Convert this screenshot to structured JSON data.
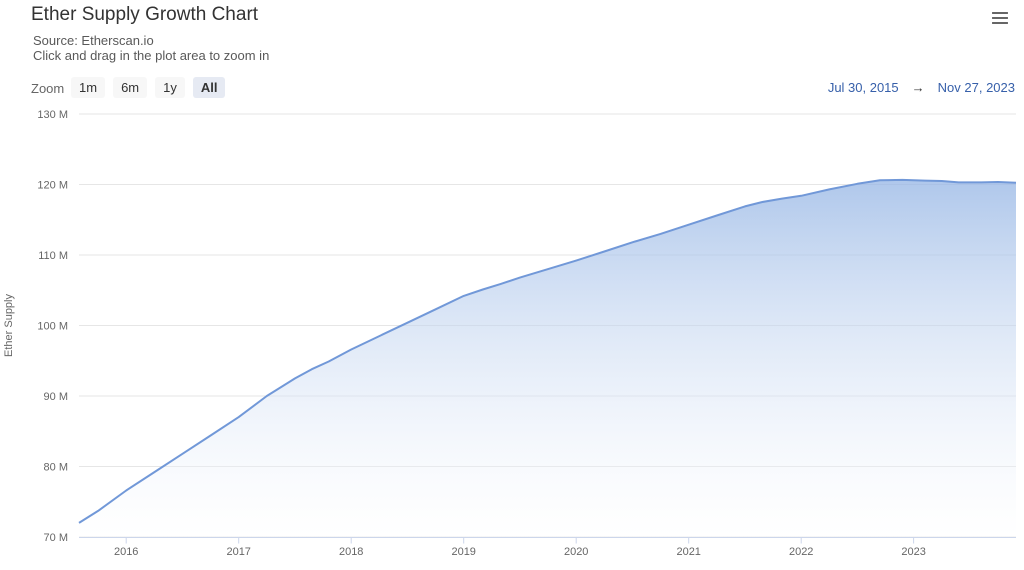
{
  "header": {
    "title": "Ether Supply Growth Chart",
    "subtitle_source": "Source: Etherscan.io",
    "subtitle_hint": "Click and drag in the plot area to zoom in"
  },
  "context_menu_icon": "hamburger-menu-icon",
  "toolbar": {
    "zoom_label": "Zoom",
    "buttons": [
      {
        "label": "1m",
        "selected": false
      },
      {
        "label": "6m",
        "selected": false
      },
      {
        "label": "1y",
        "selected": false
      },
      {
        "label": "All",
        "selected": true
      }
    ],
    "range": {
      "from": "Jul 30, 2015",
      "arrow": "→",
      "to": "Nov 27, 2023"
    }
  },
  "chart_data": {
    "type": "area",
    "title": "Ether Supply Growth Chart",
    "xlabel": "",
    "ylabel": "Ether Supply",
    "y_unit": "million ETH",
    "x_unit": "decimal year",
    "xlim": [
      2015.58,
      2023.91
    ],
    "ylim": [
      70,
      130
    ],
    "grid": "horizontal",
    "legend": "none",
    "y_ticks": [
      70,
      80,
      90,
      100,
      110,
      120,
      130
    ],
    "y_tick_labels": [
      "70 M",
      "80 M",
      "90 M",
      "100 M",
      "110 M",
      "120 M",
      "130 M"
    ],
    "x_ticks": [
      2016,
      2017,
      2018,
      2019,
      2020,
      2021,
      2022,
      2023
    ],
    "x_tick_labels": [
      "2016",
      "2017",
      "2018",
      "2019",
      "2020",
      "2021",
      "2022",
      "2023"
    ],
    "series": [
      {
        "name": "Ether Supply",
        "x": [
          2015.58,
          2015.75,
          2016.0,
          2016.25,
          2016.5,
          2016.75,
          2017.0,
          2017.25,
          2017.5,
          2017.65,
          2017.8,
          2018.0,
          2018.25,
          2018.5,
          2018.75,
          2019.0,
          2019.17,
          2019.33,
          2019.5,
          2019.75,
          2020.0,
          2020.25,
          2020.5,
          2020.75,
          2021.0,
          2021.25,
          2021.5,
          2021.65,
          2021.83,
          2022.0,
          2022.25,
          2022.5,
          2022.7,
          2022.9,
          2023.1,
          2023.25,
          2023.4,
          2023.6,
          2023.75,
          2023.91
        ],
        "y": [
          72.0,
          73.7,
          76.6,
          79.2,
          81.8,
          84.4,
          87.0,
          90.0,
          92.5,
          93.8,
          94.9,
          96.6,
          98.5,
          100.4,
          102.3,
          104.2,
          105.1,
          105.9,
          106.8,
          108.0,
          109.2,
          110.5,
          111.8,
          113.0,
          114.3,
          115.6,
          116.9,
          117.5,
          118.0,
          118.4,
          119.3,
          120.1,
          120.6,
          120.65,
          120.55,
          120.5,
          120.3,
          120.3,
          120.35,
          120.25
        ]
      }
    ],
    "colors": {
      "line": "#7198d8",
      "fill_top": "#82a8e0",
      "fill_bottom": "#ffffff",
      "gridline": "#e6e6e6",
      "axis_line": "#ccd6eb",
      "axis_text": "#666666"
    }
  }
}
